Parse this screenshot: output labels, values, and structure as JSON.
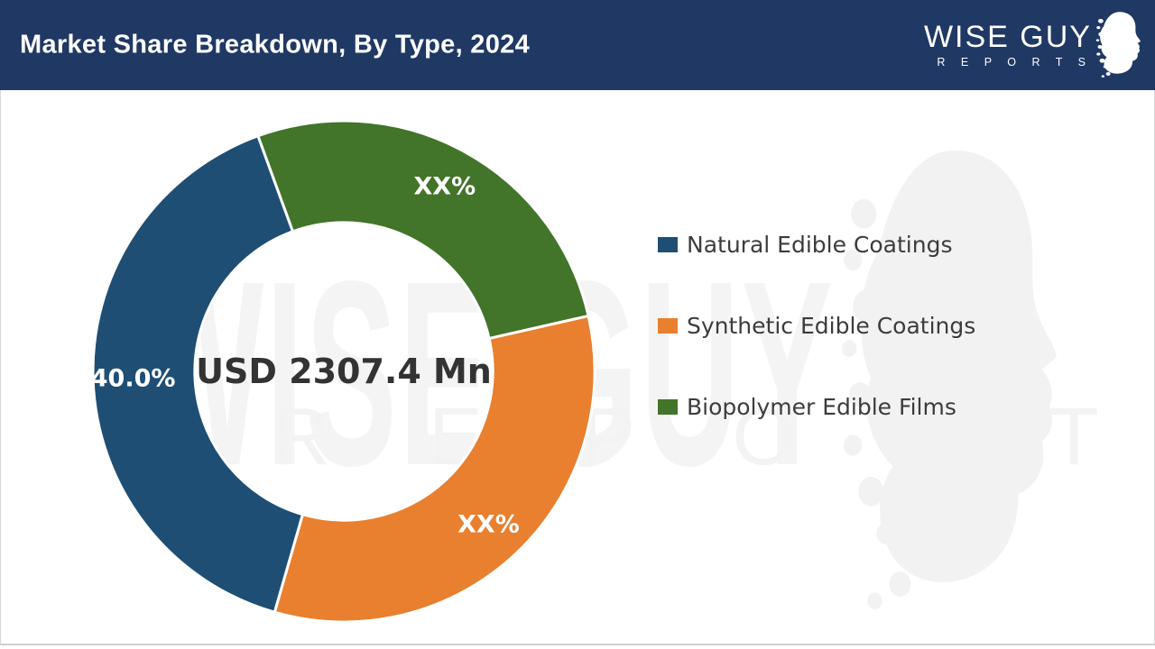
{
  "header": {
    "title": "Market Share Breakdown, By Type, 2024",
    "bg_color": "#1f3864",
    "logo": {
      "line1": "WISE GUY",
      "line2": "R E P O R T S"
    }
  },
  "watermark": {
    "line1": "WISE GUY",
    "line2": "R E P O R T S"
  },
  "chart_data": {
    "type": "pie",
    "subtype": "donut",
    "title": "Market Share Breakdown, By Type, 2024",
    "center_label": "USD 2307.4 Mn",
    "start_angle_deg": 110,
    "direction": "counterclockwise",
    "inner_radius_ratio": 0.594,
    "label_radius_ratio": 0.84,
    "legend_position": "right",
    "categories": [
      "Natural Edible Coatings",
      "Synthetic Edible Coatings",
      "Biopolymer Edible Films"
    ],
    "segments": [
      {
        "label": "Natural Edible Coatings",
        "value_pct": 40.0,
        "display": "40.0%",
        "color": "#1f4e74"
      },
      {
        "label": "Synthetic Edible Coatings",
        "value_pct": 33.0,
        "display": "XX%",
        "color": "#e8802f"
      },
      {
        "label": "Biopolymer Edible Films",
        "value_pct": 27.0,
        "display": "XX%",
        "color": "#427429"
      }
    ],
    "colors": {
      "wedge_edge": "#ffffff",
      "center_text": "#333333",
      "legend_text": "#3c3c3c",
      "watermark": "#f3f3f3"
    }
  }
}
